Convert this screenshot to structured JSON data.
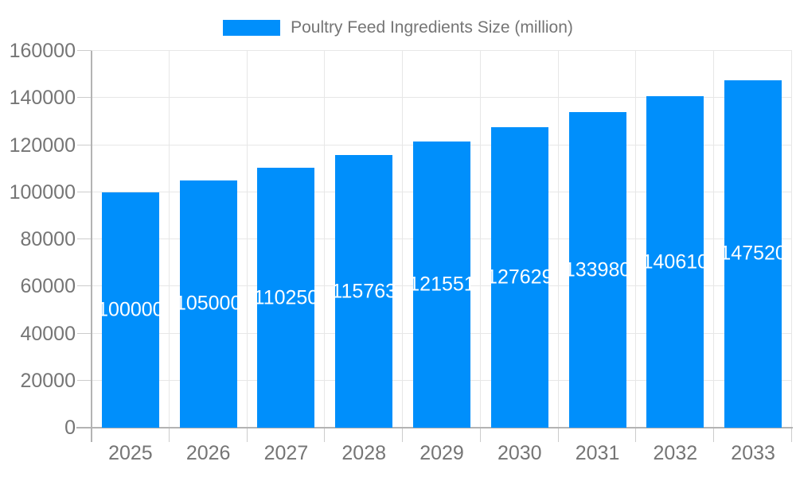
{
  "legend": {
    "label": "Poultry Feed Ingredients Size (million)"
  },
  "chart_data": {
    "type": "bar",
    "title": "Poultry Feed Ingredients Size (million)",
    "categories": [
      "2025",
      "2026",
      "2027",
      "2028",
      "2029",
      "2030",
      "2031",
      "2032",
      "2033"
    ],
    "values": [
      100000,
      105000,
      110250,
      115763,
      121551,
      127629,
      133980,
      140610,
      147520
    ],
    "series": [
      {
        "name": "Poultry Feed Ingredients Size (million)",
        "values": [
          100000,
          105000,
          110250,
          115763,
          121551,
          127629,
          133980,
          140610,
          147520
        ]
      }
    ],
    "xlabel": "",
    "ylabel": "",
    "ylim": [
      0,
      160000
    ],
    "ytick_step": 20000,
    "ytick_labels": [
      "0",
      "20000",
      "40000",
      "60000",
      "80000",
      "100000",
      "120000",
      "140000",
      "160000"
    ],
    "grid": true,
    "legend_position": "top",
    "bar_value_labels_visible": true
  },
  "colors": {
    "bar": "#008FFB",
    "bar_label_text": "#ffffff",
    "axis_text": "#757575",
    "legend_text": "#757575",
    "gridline": "#e7e7e7",
    "axis_line": "#b3b3b3",
    "tick": "#cccccc",
    "background": "#ffffff"
  }
}
